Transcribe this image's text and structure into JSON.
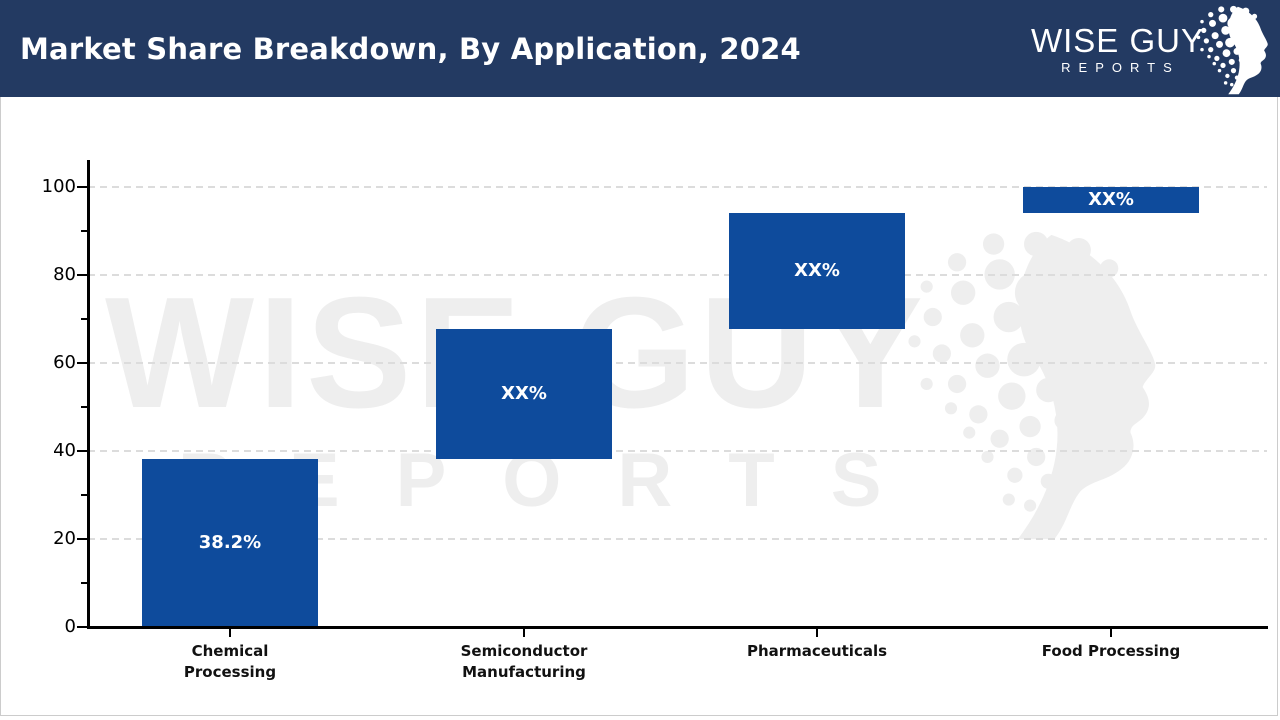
{
  "page": {
    "background": "#ffffff",
    "frame_border_color": "#cccccc"
  },
  "header": {
    "bg_color": "#233A62",
    "title": "Market Share Breakdown, By Application, 2024",
    "logo": {
      "line1": "WISE GUY",
      "line2": "REPORTS"
    }
  },
  "watermark": {
    "line1": "WISE GUY",
    "line2": "REPORTS",
    "color": "#eeeeee"
  },
  "chart_data": {
    "type": "bar",
    "subtype": "floating-waterfall-segments",
    "title": "Market Share Breakdown, By Application, 2024",
    "categories": [
      "Chemical Processing",
      "Semiconductor Manufacturing",
      "Pharmaceuticals",
      "Food Processing"
    ],
    "category_tick_lines": [
      [
        "Chemical",
        "Processing"
      ],
      [
        "Semiconductor",
        "Manufacturing"
      ],
      [
        "Pharmaceuticals"
      ],
      [
        "Food Processing"
      ]
    ],
    "values": [
      38.2,
      29.6,
      26.4,
      5.8
    ],
    "bars": [
      {
        "category": "Chemical Processing",
        "start": 0,
        "end": 38.2,
        "label": "38.2%"
      },
      {
        "category": "Semiconductor Manufacturing",
        "start": 38.2,
        "end": 67.8,
        "label": "XX%"
      },
      {
        "category": "Pharmaceuticals",
        "start": 67.8,
        "end": 94.2,
        "label": "XX%"
      },
      {
        "category": "Food Processing",
        "start": 94.2,
        "end": 100,
        "label": "XX%"
      }
    ],
    "xlabel": "",
    "ylabel": "",
    "ylim": [
      0,
      100
    ],
    "yticks": [
      0,
      20,
      40,
      60,
      80,
      100
    ],
    "yticks_minor": [
      10,
      30,
      50,
      70,
      90
    ],
    "grid": {
      "horizontal": true,
      "style": "dashed",
      "color": "#dcdcdc"
    },
    "legend": "none",
    "bar_color": "#0E4B9C",
    "bar_label_color": "#ffffff",
    "axis_color": "#000000"
  }
}
